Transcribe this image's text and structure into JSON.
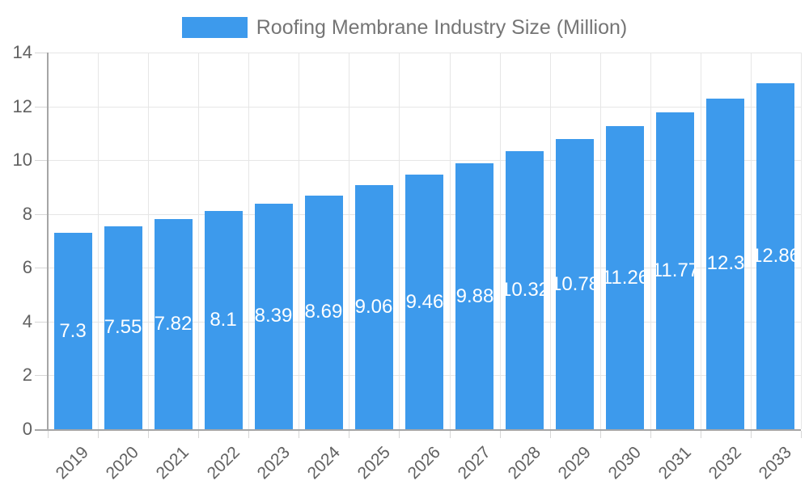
{
  "legend": {
    "label": "Roofing Membrane Industry Size (Million)"
  },
  "chart_data": {
    "type": "bar",
    "title": "Roofing Membrane Industry Size (Million)",
    "categories": [
      "2019",
      "2020",
      "2021",
      "2022",
      "2023",
      "2024",
      "2025",
      "2026",
      "2027",
      "2028",
      "2029",
      "2030",
      "2031",
      "2032",
      "2033"
    ],
    "values": [
      7.3,
      7.55,
      7.82,
      8.1,
      8.39,
      8.69,
      9.06,
      9.46,
      9.88,
      10.32,
      10.78,
      11.26,
      11.77,
      12.3,
      12.86
    ],
    "xlabel": "",
    "ylabel": "",
    "ylim": [
      0,
      14
    ],
    "yticks": [
      0,
      2,
      4,
      6,
      8,
      10,
      12,
      14
    ],
    "grid": true,
    "legend_position": "top",
    "bar_color": "#3D9AEC",
    "value_label_color": "#FFFFFF",
    "gridline_color": "#E6E6E6",
    "axis_color": "#A6A6A6",
    "tick_color": "#D6D6D6",
    "tick_label_color": "#616161",
    "legend_text_color": "#757575"
  }
}
